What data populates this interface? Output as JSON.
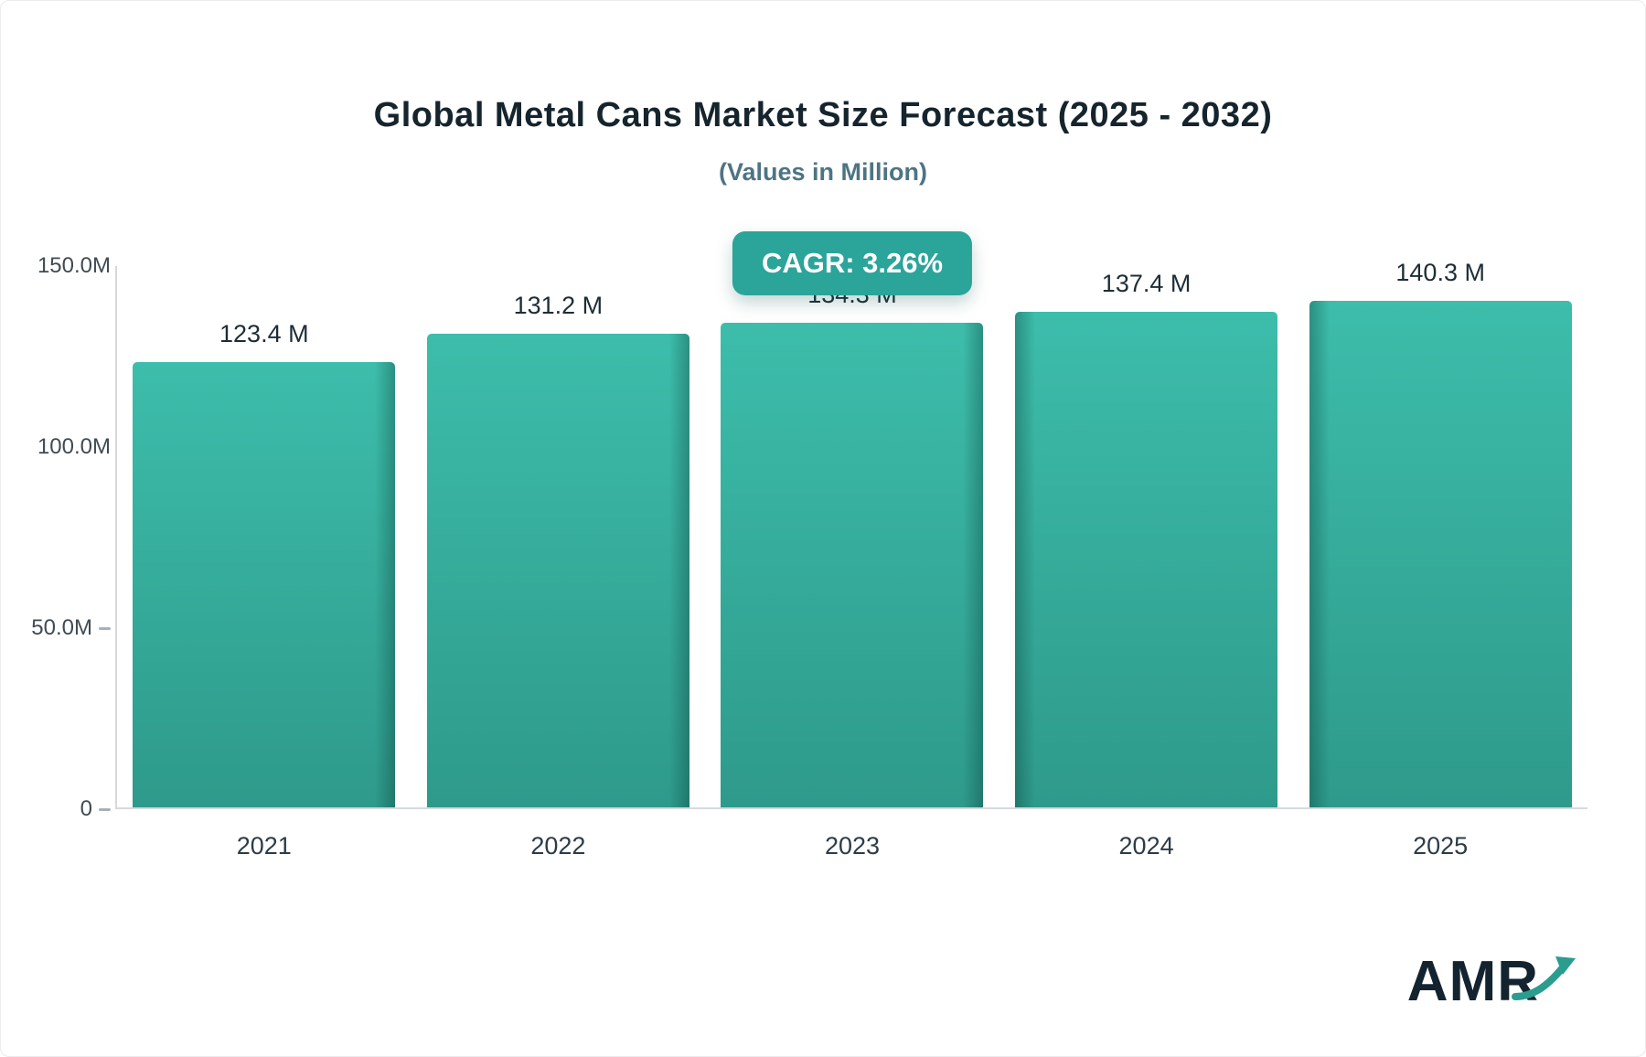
{
  "header": {
    "title": "Global Metal Cans Market Size Forecast (2025 - 2032)",
    "subtitle": "(Values in Million)"
  },
  "badge": {
    "label": "CAGR: 3.26%",
    "bg": "#2ba49a"
  },
  "chart_data": {
    "type": "bar",
    "title": "Global Metal Cans Market Size Forecast (2025 - 2032)",
    "subtitle": "(Values in Million)",
    "categories": [
      "2021",
      "2022",
      "2023",
      "2024",
      "2025"
    ],
    "values": [
      123.4,
      131.2,
      134.3,
      137.4,
      140.3
    ],
    "value_labels": [
      "123.4 M",
      "131.2 M",
      "134.3 M",
      "137.4 M",
      "140.3 M"
    ],
    "xlabel": "",
    "ylabel": "",
    "ylim": [
      0,
      150
    ],
    "y_ticks": [
      {
        "label": "150.0M",
        "value": 150,
        "dash": false
      },
      {
        "label": "100.0M",
        "value": 100,
        "dash": false
      },
      {
        "label": "50.0M",
        "value": 50,
        "dash": true
      },
      {
        "label": "0",
        "value": 0,
        "dash": true
      }
    ],
    "grid": false,
    "legend": false,
    "annotation": "CAGR: 3.26%",
    "bar_color_top": "#3dbdab",
    "bar_color_bottom": "#2e9a8b",
    "bar_edge_shadow": "rgba(0,40,36,0.30)",
    "axis_color": "#d6dadd"
  },
  "logo": {
    "text": "AMR",
    "arrow_color": "#2a9d8f"
  }
}
